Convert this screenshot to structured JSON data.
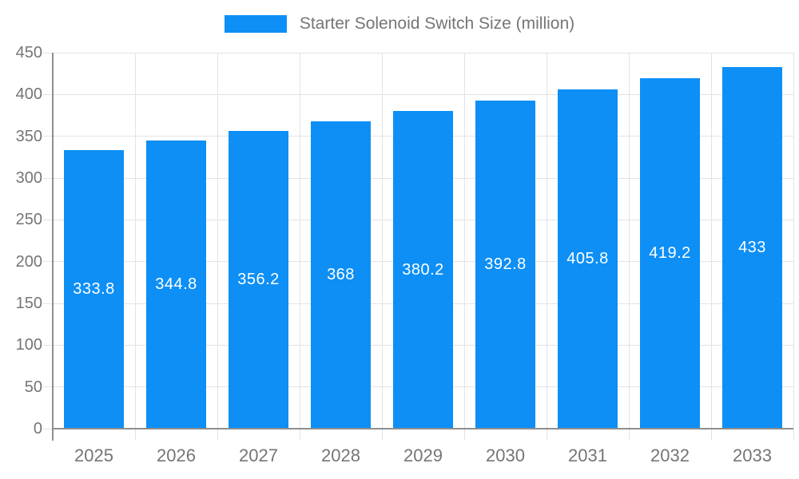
{
  "chart_data": {
    "type": "bar",
    "title": "Starter Solenoid Switch Size (million)",
    "categories": [
      "2025",
      "2026",
      "2027",
      "2028",
      "2029",
      "2030",
      "2031",
      "2032",
      "2033"
    ],
    "values": [
      333.8,
      344.8,
      356.2,
      368,
      380.2,
      392.8,
      405.8,
      419.2,
      433
    ],
    "value_labels": [
      "333.8",
      "344.8",
      "356.2",
      "368",
      "380.2",
      "392.8",
      "405.8",
      "419.2",
      "433"
    ],
    "xlabel": "",
    "ylabel": "",
    "ylim": [
      0,
      450
    ],
    "ytick_step": 50,
    "ytick_labels": [
      "0",
      "50",
      "100",
      "150",
      "200",
      "250",
      "300",
      "350",
      "400",
      "450"
    ],
    "grid": true,
    "legend_position": "top-center",
    "colors": {
      "bar": "#0d8ff6",
      "value_label": "#ffffff",
      "axis": "#8f8f8f",
      "grid": "#e3e3e3",
      "tick_text": "#757575",
      "background": "#ffffff"
    }
  }
}
